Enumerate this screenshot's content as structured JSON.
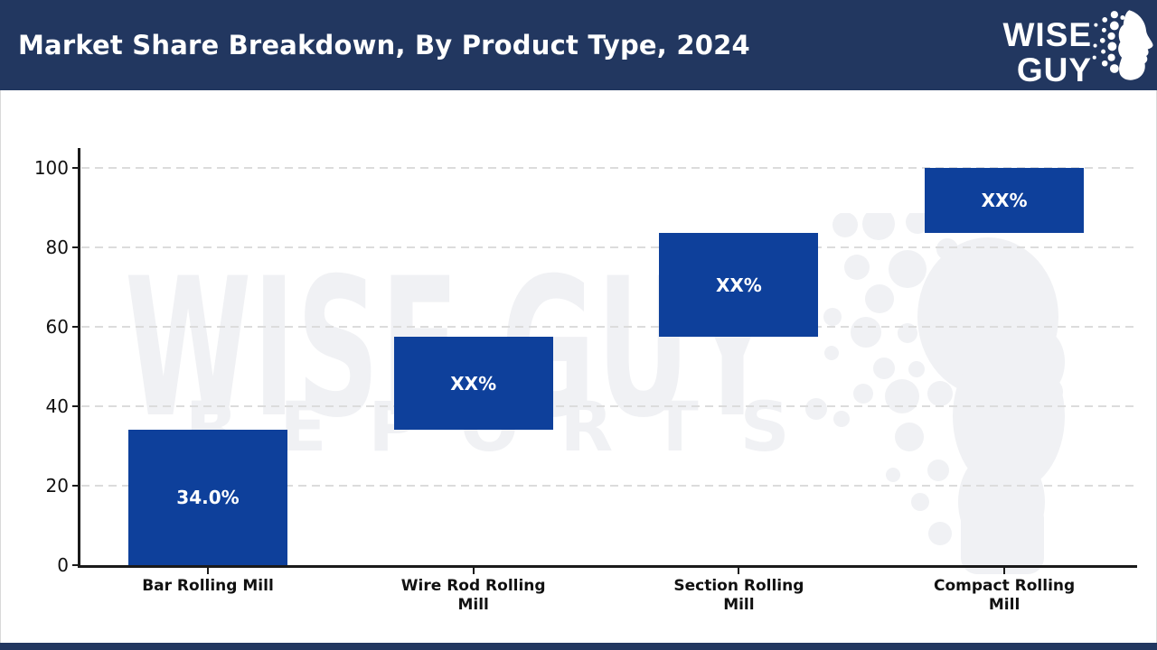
{
  "header": {
    "title": "Market Share Breakdown, By Product Type, 2024",
    "logo": {
      "name": "WISE GUY",
      "sub": "R E P O R T S"
    }
  },
  "watermark": {
    "line1": "WISE GUY",
    "line2": "REPORTS"
  },
  "chart_data": {
    "type": "bar",
    "subtype": "waterfall",
    "title": "Market Share Breakdown, By Product Type, 2024",
    "categories": [
      "Bar Rolling Mill",
      "Wire Rod Rolling Mill",
      "Section Rolling Mill",
      "Compact Rolling Mill"
    ],
    "series": [
      {
        "name": "Market Share (%)",
        "segments": [
          {
            "category": "Bar Rolling Mill",
            "start": 0,
            "end": 34.0,
            "label": "34.0%"
          },
          {
            "category": "Wire Rod Rolling Mill",
            "start": 34.0,
            "end": 57.5,
            "label": "XX%"
          },
          {
            "category": "Section Rolling Mill",
            "start": 57.5,
            "end": 83.6,
            "label": "XX%"
          },
          {
            "category": "Compact Rolling Mill",
            "start": 83.6,
            "end": 100.0,
            "label": "XX%"
          }
        ]
      }
    ],
    "xlabel": "",
    "ylabel": "",
    "ylim": [
      0,
      100
    ],
    "yticks": [
      0,
      20,
      40,
      60,
      80,
      100
    ],
    "grid": "horizontal-dashed",
    "legend": "none"
  },
  "colors": {
    "header_bg": "#223760",
    "footer_bg": "#223760",
    "bar": "#0e409b",
    "grid": "#dcdcdc",
    "axis": "#1a1a1a",
    "watermark": "#f0f1f4",
    "title_text": "#ffffff"
  }
}
